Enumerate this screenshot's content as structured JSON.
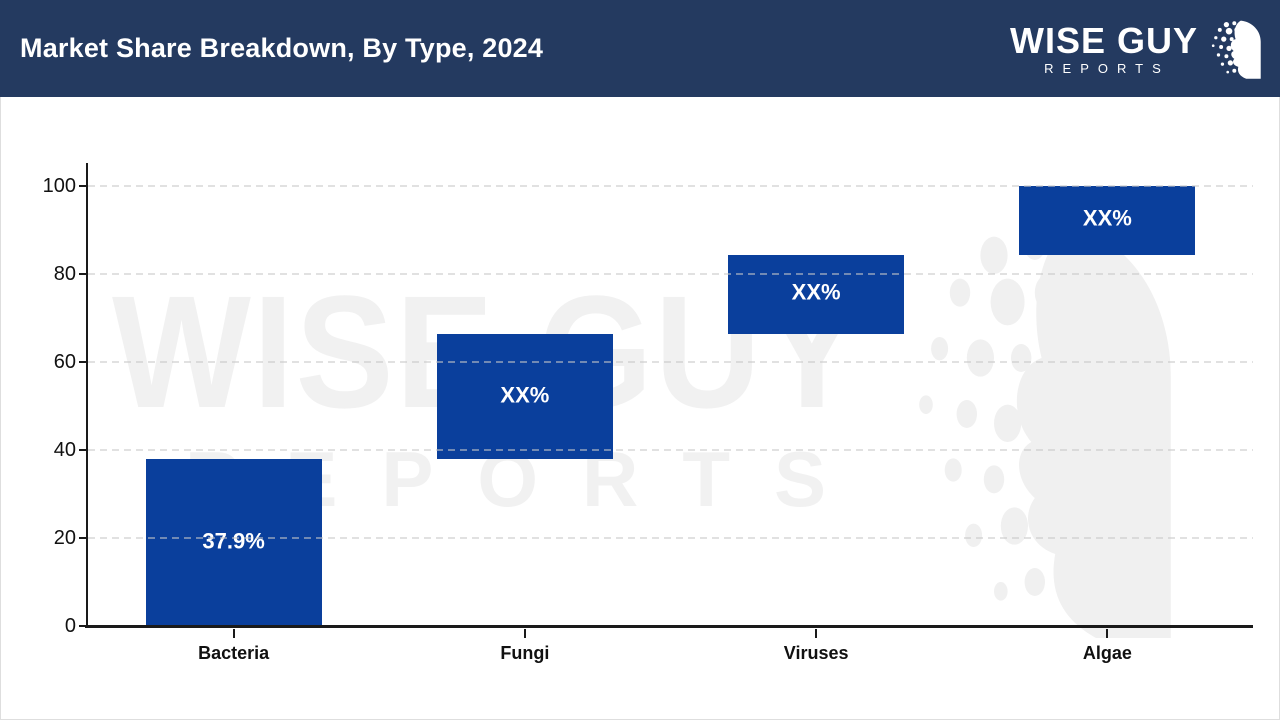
{
  "header": {
    "title": "Market Share Breakdown, By Type, 2024",
    "bg_color": "#243a60",
    "logo": {
      "line1": "WISE GUY",
      "line2": "REPORTS"
    }
  },
  "watermark": {
    "line1": "WISE GUY",
    "line2": "REPORTS"
  },
  "chart_data": {
    "type": "bar",
    "subtype": "waterfall",
    "title": "Market Share Breakdown, By Type, 2024",
    "categories": [
      "Bacteria",
      "Fungi",
      "Viruses",
      "Algae"
    ],
    "series": [
      {
        "name": "Market Share",
        "segments": [
          {
            "category": "Bacteria",
            "start": 0,
            "end": 37.9,
            "label": "37.9%"
          },
          {
            "category": "Fungi",
            "start": 37.9,
            "end": 66.3,
            "label": "XX%"
          },
          {
            "category": "Viruses",
            "start": 66.3,
            "end": 84.4,
            "label": "XX%"
          },
          {
            "category": "Algae",
            "start": 84.4,
            "end": 100,
            "label": "XX%"
          }
        ]
      }
    ],
    "xlabel": "",
    "ylabel": "",
    "yticks": [
      0,
      20,
      40,
      60,
      80,
      100
    ],
    "ylim": [
      0,
      105
    ],
    "grid": true,
    "grid_style": "dashed",
    "legend": false,
    "bar_color": "#0a3f9c",
    "bar_label_color": "#ffffff",
    "axis_color": "#1a1a1a"
  }
}
